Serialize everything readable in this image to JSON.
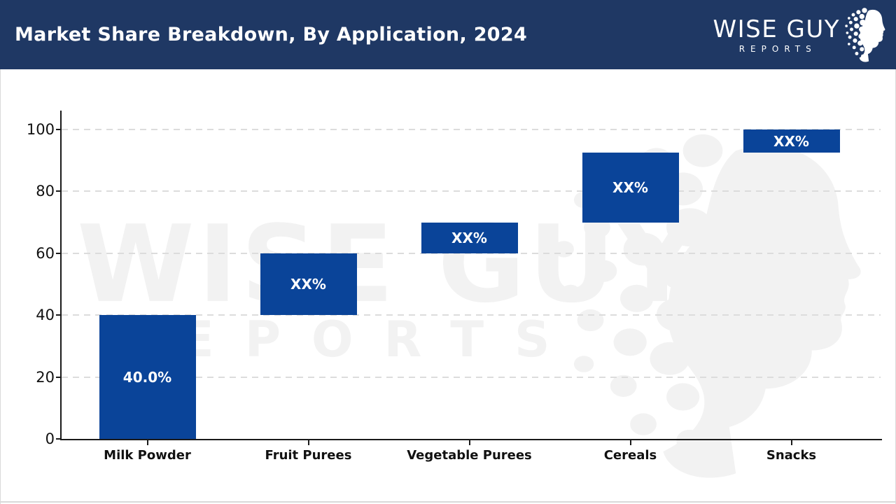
{
  "header": {
    "title": "Market Share Breakdown, By Application, 2024",
    "bg_color": "#1F3864"
  },
  "logo": {
    "line1": "WISE GUY",
    "line2": "REPORTS"
  },
  "watermark": {
    "line1": "WISE GUY",
    "line2": "REPORTS"
  },
  "chart_data": {
    "type": "bar",
    "subtype": "floating-waterfall-segments",
    "title": "Market Share Breakdown, By Application, 2024",
    "categories": [
      "Milk Powder",
      "Fruit Purees",
      "Vegetable Purees",
      "Cereals",
      "Snacks"
    ],
    "segments": [
      {
        "category": "Milk Powder",
        "from": 0,
        "to": 40,
        "label": "40.0%"
      },
      {
        "category": "Fruit Purees",
        "from": 40,
        "to": 60,
        "label": "XX%"
      },
      {
        "category": "Vegetable Purees",
        "from": 60,
        "to": 70,
        "label": "XX%"
      },
      {
        "category": "Cereals",
        "from": 70,
        "to": 92.5,
        "label": "XX%"
      },
      {
        "category": "Snacks",
        "from": 92.5,
        "to": 100,
        "label": "XX%"
      }
    ],
    "ylim": [
      0,
      100
    ],
    "yticks": [
      "0",
      "20",
      "40",
      "60",
      "80",
      "100"
    ],
    "grid": "horizontal-dashed",
    "legend": "none",
    "xlabel": "",
    "ylabel": "",
    "bar_color": "#0A4499",
    "bar_label_color": "#ffffff",
    "grid_color": "#dcdcdc",
    "axis_color": "#1a1a1a"
  }
}
